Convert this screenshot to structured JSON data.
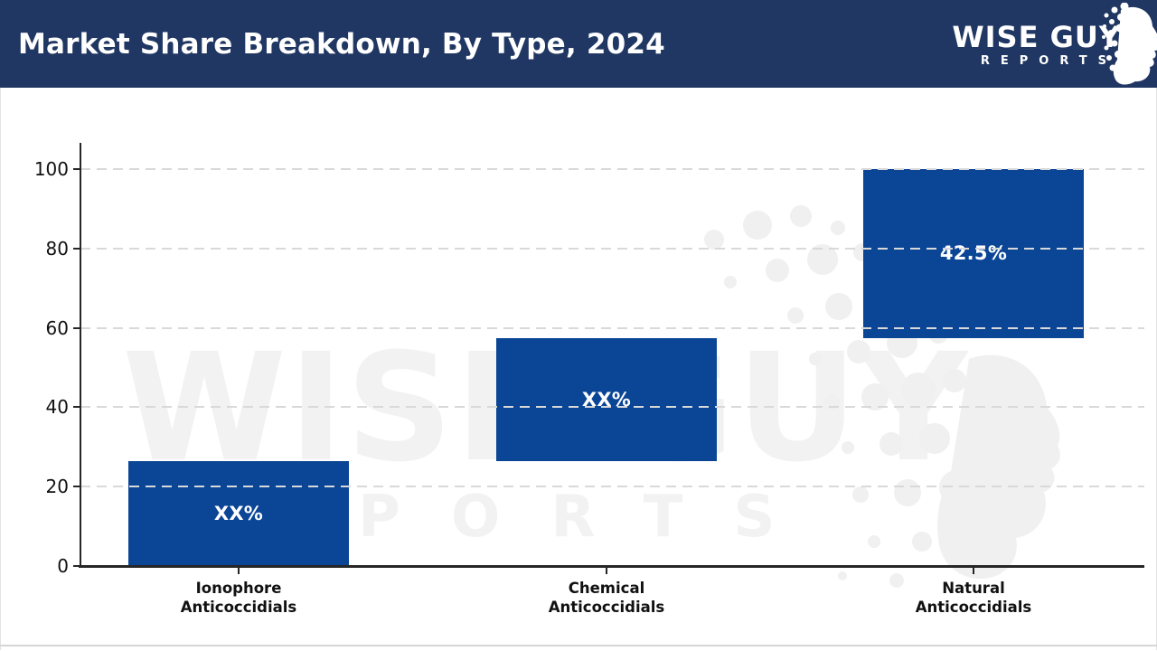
{
  "header": {
    "title": "Market Share Breakdown, By Type, 2024",
    "logo": {
      "line1": "WISE GUY",
      "line2": "REPORTS"
    }
  },
  "watermark": {
    "line1": "WISE GUY",
    "line2": "REPORTS"
  },
  "chart_data": {
    "type": "bar",
    "subtype": "stacked-percentage-waterfall",
    "title": "Market Share Breakdown, By Type, 2024",
    "categories": [
      "Ionophore Anticoccidials",
      "Chemical Anticoccidials",
      "Natural Anticoccidials"
    ],
    "xtick_labels": [
      "Ionophore\nAnticoccidials",
      "Chemical\nAnticoccidials",
      "Natural\nAnticoccidials"
    ],
    "bar_labels": [
      "XX%",
      "XX%",
      "42.5%"
    ],
    "values_pct": [
      26.5,
      31.0,
      42.5
    ],
    "segments": [
      {
        "start": 0,
        "end": 26.5
      },
      {
        "start": 26.5,
        "end": 57.5
      },
      {
        "start": 57.5,
        "end": 100
      }
    ],
    "yticks": [
      0,
      20,
      40,
      60,
      80,
      100
    ],
    "ylim": [
      0,
      105
    ],
    "grid": "horizontal-dashed",
    "legend": "none",
    "colors": {
      "bar": "#0B4596",
      "header_bg": "#203763",
      "axis": "#262626",
      "gridline": "#d9d9d9",
      "watermark": "#f2f2f2"
    }
  }
}
